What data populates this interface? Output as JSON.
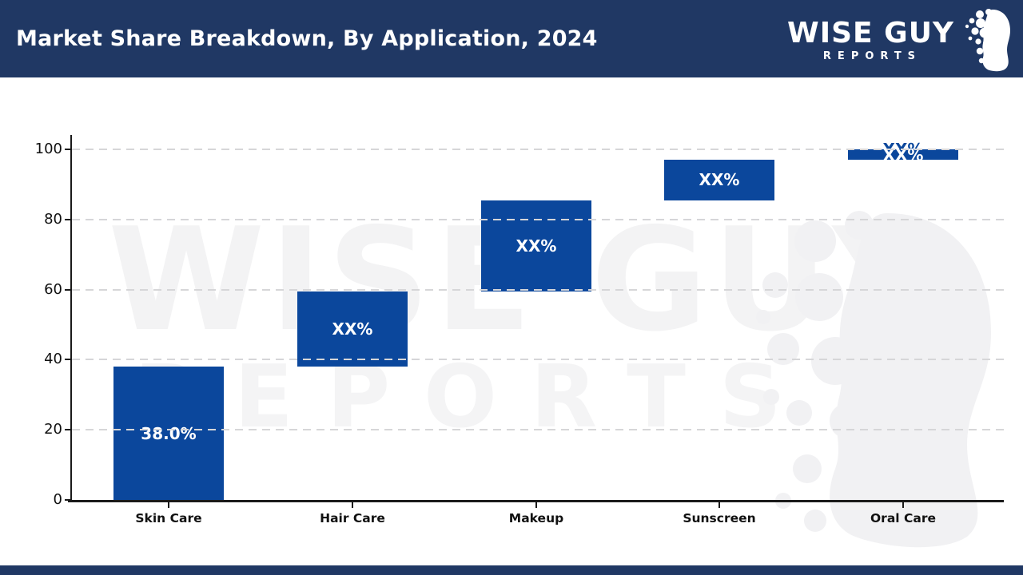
{
  "header": {
    "title": "Market Share Breakdown, By Application, 2024",
    "logo_line1": "WISE GUY",
    "logo_line2": "REPORTS"
  },
  "watermark": {
    "line1": "WISE GUY",
    "line2": "REPORTS"
  },
  "colors": {
    "header_bg": "#203864",
    "bar": "#0b479c",
    "bar_label": "#ffffff",
    "gridline": "#d6d6d8",
    "watermark": "#f3f3f4"
  },
  "chart_data": {
    "type": "bar",
    "subtype": "waterfall",
    "title": "Market Share Breakdown, By Application, 2024",
    "xlabel": "",
    "ylabel": "",
    "ylim": [
      0,
      104
    ],
    "yticks": [
      0,
      20,
      40,
      60,
      80,
      100
    ],
    "grid": "dashed-horizontal",
    "legend": "none",
    "categories": [
      "Skin Care",
      "Hair Care",
      "Makeup",
      "Sunscreen",
      "Oral Care"
    ],
    "bars": [
      {
        "category": "Skin Care",
        "start": 0,
        "end": 38,
        "value": 38.0,
        "label": "38.0%"
      },
      {
        "category": "Hair Care",
        "start": 38,
        "end": 59.5,
        "value": 21.5,
        "label": "XX%"
      },
      {
        "category": "Makeup",
        "start": 59.5,
        "end": 85.5,
        "value": 26.0,
        "label": "XX%"
      },
      {
        "category": "Sunscreen",
        "start": 85.5,
        "end": 97,
        "value": 11.5,
        "label": "XX%"
      },
      {
        "category": "Oral Care",
        "start": 97,
        "end": 100,
        "value": 3.0,
        "label": "XX%"
      }
    ]
  }
}
